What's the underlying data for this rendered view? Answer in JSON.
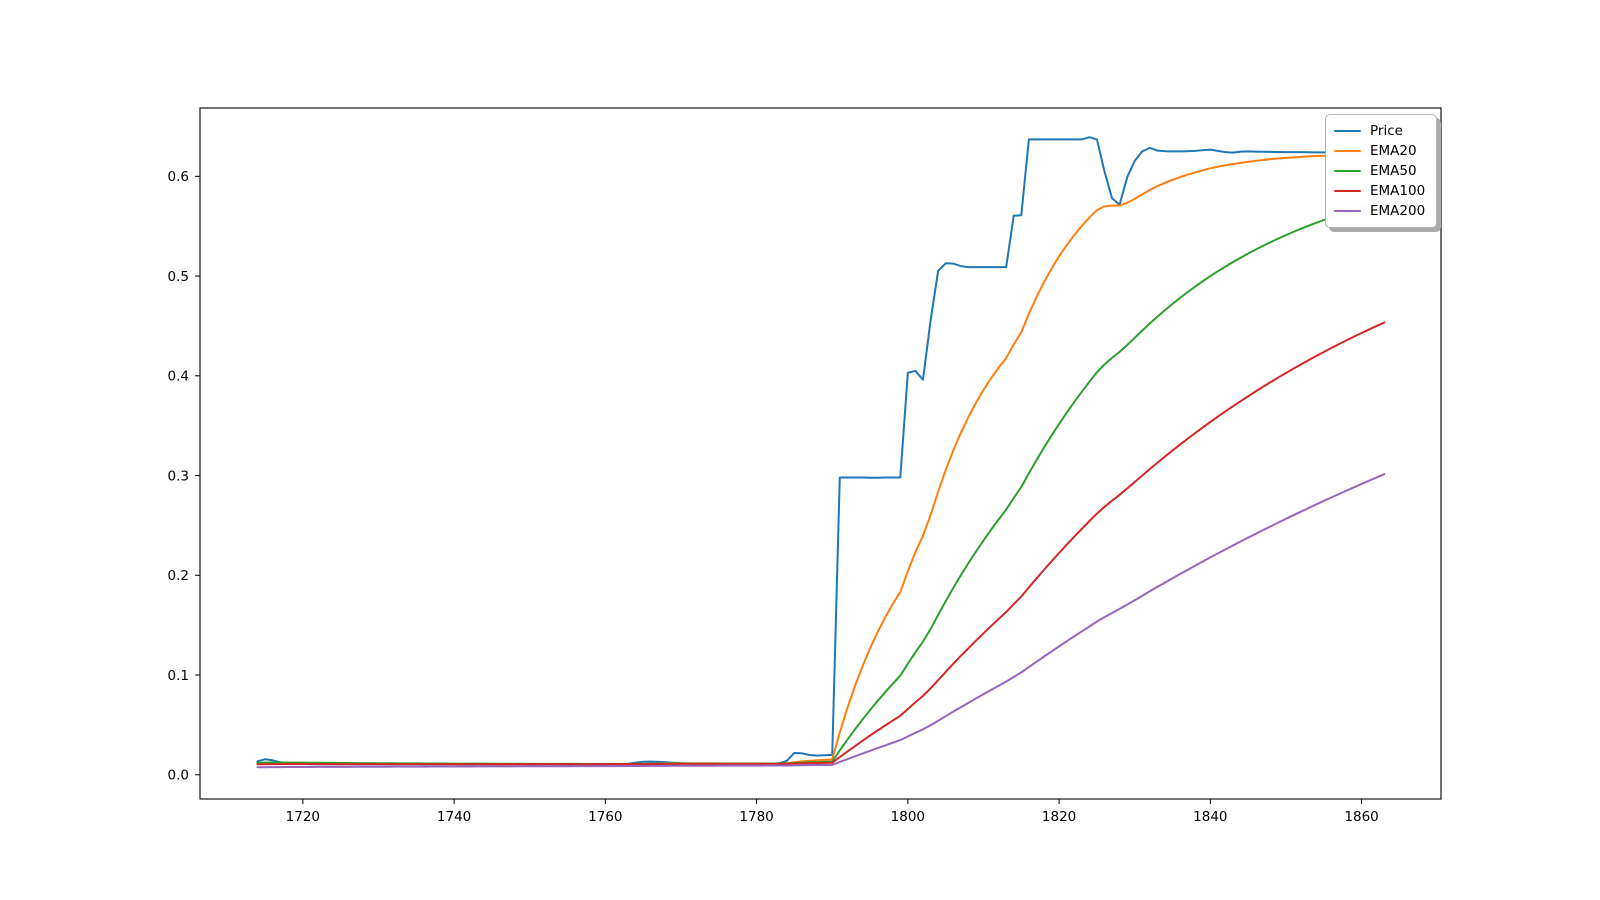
{
  "figure": {
    "background": "#ffffff",
    "title": ""
  },
  "chart_data": {
    "type": "line",
    "title": "",
    "xlabel": "",
    "ylabel": "",
    "grid": false,
    "legend_position": "upper right",
    "xlim": [
      1706.4,
      1870.5
    ],
    "ylim": [
      -0.0243,
      0.6685
    ],
    "x_ticks": [
      1720,
      1740,
      1760,
      1780,
      1800,
      1820,
      1840,
      1860
    ],
    "x_tick_labels": [
      "1720",
      "1740",
      "1760",
      "1780",
      "1800",
      "1820",
      "1840",
      "1860"
    ],
    "y_ticks": [
      0.0,
      0.1,
      0.2,
      0.3,
      0.4,
      0.5,
      0.6
    ],
    "y_tick_labels": [
      "0.0",
      "0.1",
      "0.2",
      "0.3",
      "0.4",
      "0.5",
      "0.6"
    ],
    "x_start": 1714,
    "x_step": 1,
    "ema_definition": "ema[i] = ema[i-1] + (2/(span+1)) * (price[i] - ema[i-1]), seeded at series seed",
    "series": [
      {
        "name": "Price",
        "color": "#1f77b4",
        "kind": "raw",
        "values": [
          0.0135,
          0.0155,
          0.0145,
          0.0125,
          0.0115,
          0.011,
          0.0108,
          0.0105,
          0.0105,
          0.0105,
          0.0105,
          0.0105,
          0.0105,
          0.0105,
          0.0105,
          0.0105,
          0.0106,
          0.0104,
          0.0105,
          0.0105,
          0.0106,
          0.0105,
          0.0104,
          0.0105,
          0.0105,
          0.0106,
          0.0105,
          0.0104,
          0.0104,
          0.0105,
          0.0105,
          0.0104,
          0.0104,
          0.0105,
          0.0106,
          0.0105,
          0.0104,
          0.0104,
          0.0105,
          0.0105,
          0.0104,
          0.0104,
          0.0105,
          0.0106,
          0.0107,
          0.0107,
          0.0106,
          0.0106,
          0.0107,
          0.011,
          0.0122,
          0.013,
          0.0132,
          0.0129,
          0.0126,
          0.0121,
          0.0116,
          0.0112,
          0.011,
          0.011,
          0.0111,
          0.0112,
          0.0112,
          0.0111,
          0.011,
          0.011,
          0.0111,
          0.0112,
          0.0112,
          0.0115,
          0.014,
          0.022,
          0.0215,
          0.0198,
          0.0192,
          0.0196,
          0.02,
          0.298,
          0.298,
          0.298,
          0.298,
          0.2978,
          0.2978,
          0.298,
          0.298,
          0.298,
          0.403,
          0.405,
          0.396,
          0.455,
          0.505,
          0.5128,
          0.5125,
          0.51,
          0.509,
          0.509,
          0.509,
          0.509,
          0.509,
          0.509,
          0.5605,
          0.561,
          0.637,
          0.637,
          0.637,
          0.637,
          0.637,
          0.637,
          0.637,
          0.637,
          0.6392,
          0.637,
          0.605,
          0.578,
          0.5715,
          0.599,
          0.6155,
          0.625,
          0.6285,
          0.6258,
          0.6252,
          0.625,
          0.625,
          0.6252,
          0.6255,
          0.6262,
          0.6268,
          0.6255,
          0.6242,
          0.6238,
          0.6248,
          0.625,
          0.6248,
          0.6246,
          0.6245,
          0.6244,
          0.6243,
          0.6242,
          0.6242,
          0.6241,
          0.624,
          0.624,
          0.6239,
          0.6238,
          0.6237,
          0.6236,
          0.6235,
          0.6234,
          0.6233,
          0.6232
        ]
      },
      {
        "name": "EMA20",
        "color": "#ff7f0e",
        "kind": "ema",
        "span": 20,
        "seed": 0.0115
      },
      {
        "name": "EMA50",
        "color": "#2ca02c",
        "kind": "ema",
        "span": 50,
        "seed": 0.012
      },
      {
        "name": "EMA100",
        "color": "#d62728",
        "kind": "ema",
        "span": 100,
        "seed": 0.0105
      },
      {
        "name": "EMA200",
        "color": "#9467bd",
        "kind": "ema",
        "span": 200,
        "seed": 0.0075
      }
    ]
  },
  "legend": {
    "items": [
      "Price",
      "EMA20",
      "EMA50",
      "EMA100",
      "EMA200"
    ]
  }
}
